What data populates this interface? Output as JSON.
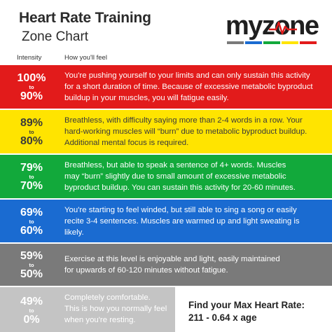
{
  "header": {
    "title_line1": "Heart Rate Training",
    "title_line2": "Zone Chart",
    "col_intensity": "Intensity",
    "col_feel": "How you'll feel"
  },
  "logo": {
    "text": "myzone",
    "stripe_colors": [
      "#7a7a7a",
      "#1a6bd1",
      "#12a93b",
      "#ffe400",
      "#e21b1b"
    ]
  },
  "zones": [
    {
      "color": "#e21b1b",
      "high": "100%",
      "to": "to",
      "low": "90%",
      "lines": [
        "You're pushing yourself to your limits and can only sustain this activity",
        "for a short duration of time. Because of excessive metabolic byproduct",
        "buildup in your muscles, you will fatigue easily."
      ]
    },
    {
      "color": "#ffe400",
      "high": "89%",
      "to": "to",
      "low": "80%",
      "lines": [
        "Breathless, with difficulty saying more than 2-4 words in a row. Your",
        "hard-working muscles will “burn” due to metabolic byproduct buildup.",
        "Additional mental focus is required."
      ]
    },
    {
      "color": "#12a93b",
      "high": "79%",
      "to": "to",
      "low": "70%",
      "lines": [
        "Breathless, but able to speak a sentence of 4+ words. Muscles",
        "may “burn” slightly due to small amount of excessive metabolic",
        "byproduct buildup. You can sustain this activity for 20-60 minutes."
      ]
    },
    {
      "color": "#1a6bd1",
      "high": "69%",
      "to": "to",
      "low": "60%",
      "lines": [
        "You're starting to feel winded, but still able to sing a song or easily",
        "recite 3-4 sentences. Muscles are warmed up and light sweating is",
        "likely."
      ]
    },
    {
      "color": "#7a7a7a",
      "high": "59%",
      "to": "to",
      "low": "50%",
      "lines": [
        "Exercise at this level is enjoyable and light, easily maintained",
        "for upwards of 60-120 minutes without fatigue."
      ]
    },
    {
      "color": "#c4c4c4",
      "high": "49%",
      "to": "to",
      "low": "0%",
      "lines": [
        "Completely comfortable.",
        "This is how you normally feel",
        "when you're resting."
      ]
    }
  ],
  "formula": {
    "line1": "Find your Max Heart Rate:",
    "line2": "211 - 0.64 x age"
  }
}
